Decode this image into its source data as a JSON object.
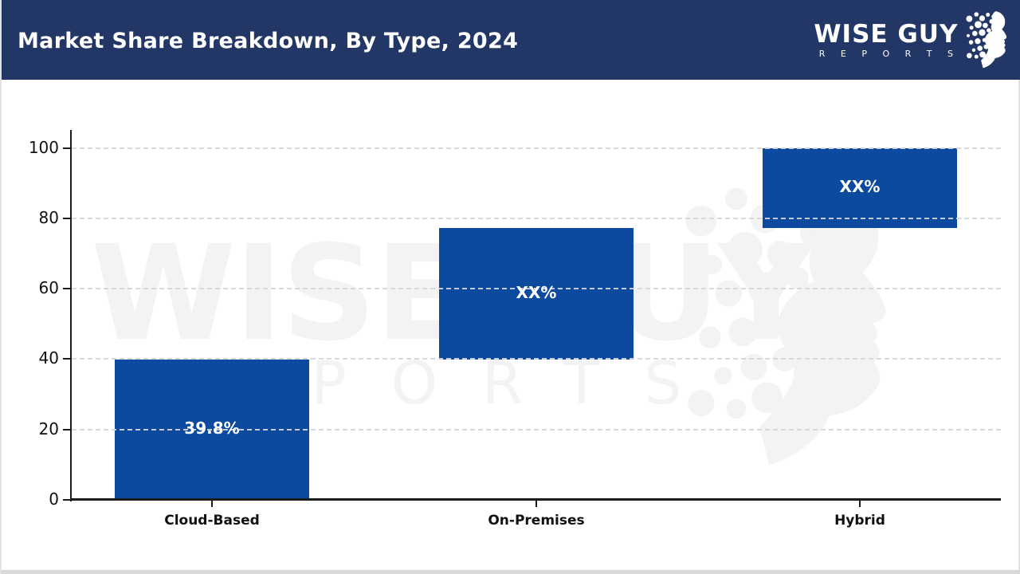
{
  "header": {
    "title": "Market Share Breakdown, By Type, 2024",
    "bg_color": "#223765",
    "logo": {
      "line1": "WISE GUY",
      "line2": "R E P O R T S",
      "icon": "dotted-head-profile-icon"
    }
  },
  "chart_data": {
    "type": "bar",
    "subtype": "waterfall-floating-bars",
    "title": "Market Share Breakdown, By Type, 2024",
    "categories": [
      "Cloud-Based",
      "On-Premises",
      "Hybrid"
    ],
    "series": [
      {
        "name": "Market Share",
        "segments": [
          {
            "category": "Cloud-Based",
            "start": 0,
            "end": 39.8,
            "label": "39.8%"
          },
          {
            "category": "On-Premises",
            "start": 39.8,
            "end": 77.2,
            "label": "XX%"
          },
          {
            "category": "Hybrid",
            "start": 77.2,
            "end": 100,
            "label": "XX%"
          }
        ]
      }
    ],
    "xlabel": "",
    "ylabel": "",
    "ylim": [
      0,
      100
    ],
    "yticks": [
      0,
      20,
      40,
      60,
      80,
      100
    ],
    "grid": "horizontal-dashed-over-bars",
    "legend": "none",
    "bar_color": "#0b4a9f",
    "bar_label_color": "#ffffff",
    "gridline_color": "#d6d6d6",
    "axis_color": "#1c1c1c"
  },
  "watermark": {
    "line1": "WISE GUY",
    "line2": "REPORTS",
    "icon": "dotted-head-profile-watermark",
    "color": "#f3f3f5"
  },
  "footer": {
    "strip_color": "#d9d9d9"
  }
}
